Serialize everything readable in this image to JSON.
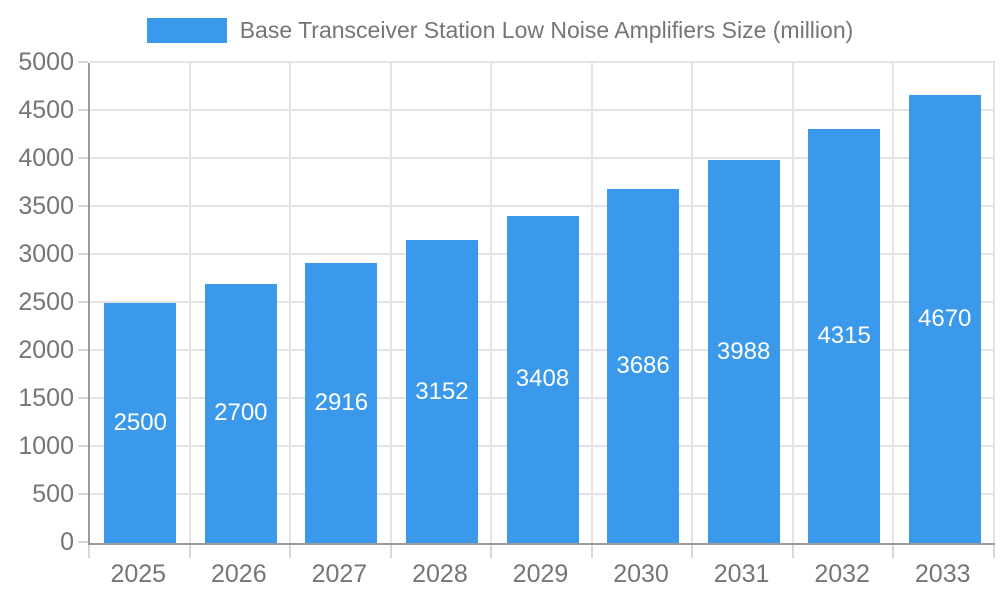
{
  "chart_data": {
    "type": "bar",
    "title": "",
    "legend": {
      "label": "Base Transceiver Station Low Noise Amplifiers Size (million)",
      "position": "top"
    },
    "categories": [
      "2025",
      "2026",
      "2027",
      "2028",
      "2029",
      "2030",
      "2031",
      "2032",
      "2033"
    ],
    "values": [
      2500,
      2700,
      2916,
      3152,
      3408,
      3686,
      3988,
      4315,
      4670
    ],
    "bar_labels_visible": true,
    "xlabel": "",
    "ylabel": "",
    "ylim": [
      0,
      5000
    ],
    "yticks": [
      0,
      500,
      1000,
      1500,
      2000,
      2500,
      3000,
      3500,
      4000,
      4500,
      5000
    ],
    "grid": true
  },
  "colors": {
    "bar": "#3B99EC",
    "bar_label_text": "#FFFFFF",
    "axis_text": "#757575",
    "legend_text": "#757575",
    "axis_line": "#9B9B9B",
    "grid_line": "#E4E4E4",
    "tick_line": "#D8D8D8",
    "background": "#FFFFFF"
  }
}
